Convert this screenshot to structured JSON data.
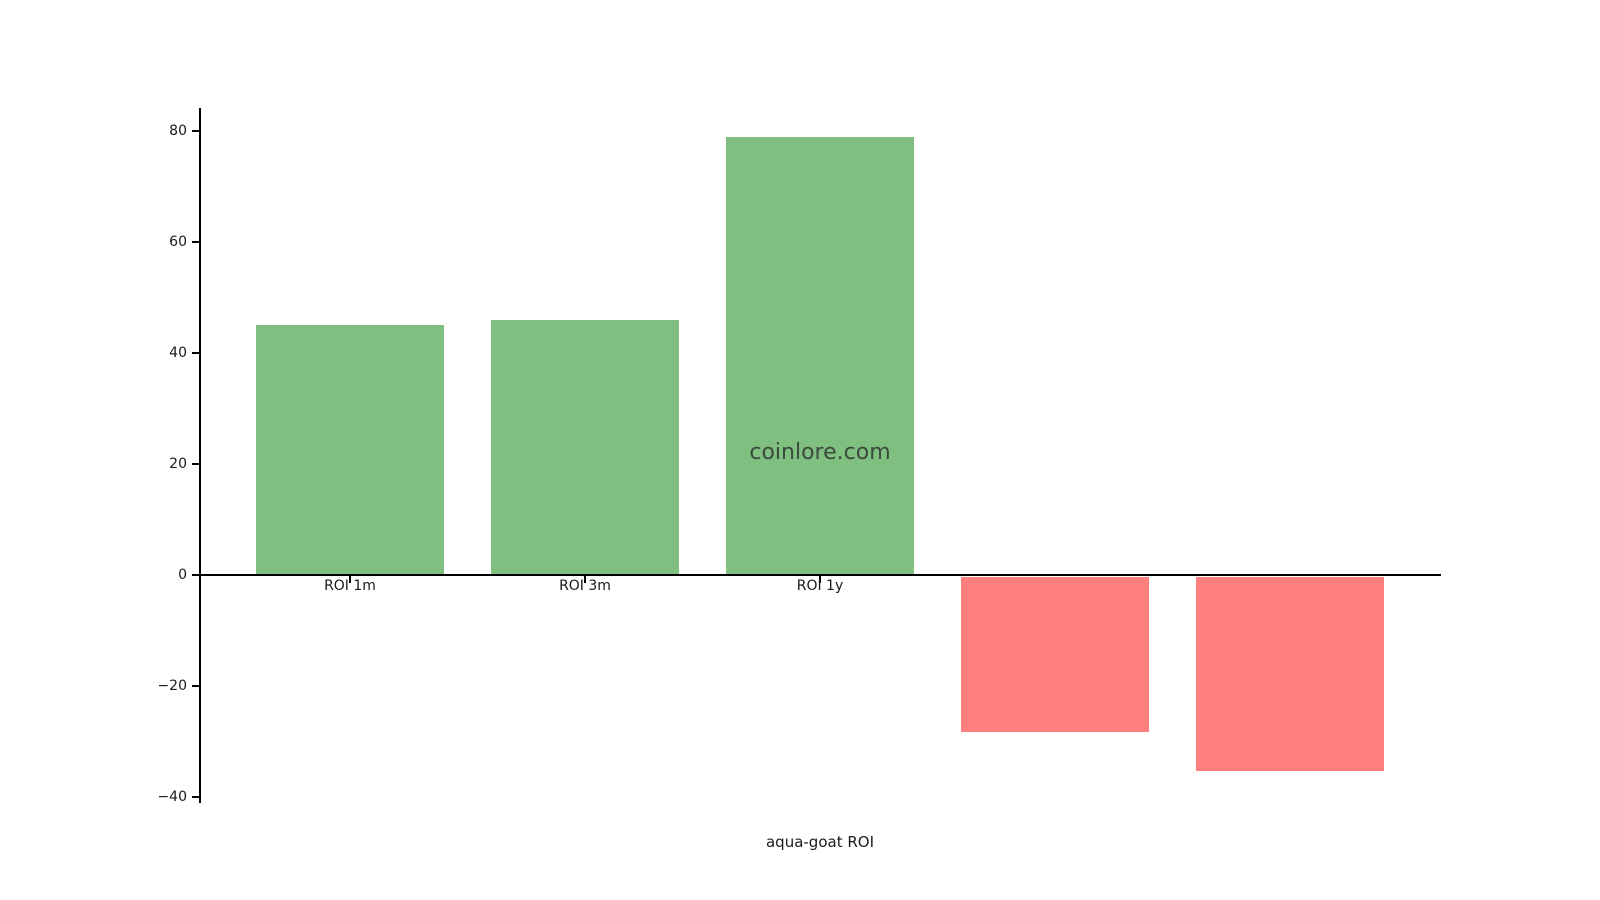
{
  "chart_data": {
    "type": "bar",
    "title": "",
    "categories": [
      "ROI 1m",
      "ROI 3m",
      "ROI 1y",
      "",
      ""
    ],
    "values": [
      45,
      46,
      79,
      -28,
      -35
    ],
    "series": [
      {
        "name": "aqua-goat ROI %",
        "values": [
          45,
          46,
          79,
          -28,
          -35
        ]
      }
    ],
    "xlabel": "aqua-goat ROI",
    "ylabel": "",
    "yticks": [
      80,
      60,
      40,
      20,
      0,
      -20,
      -40
    ],
    "ylim": [
      -41,
      84.5
    ],
    "grid": false,
    "legend_position": "none",
    "watermark": "coinlore.com",
    "colors": {
      "bar_positive": "#7fbf7f",
      "bar_negative": "#ff7f7f",
      "axis": "#000000",
      "tick_label": "#1a1a1a",
      "watermark": "#3c4a3e",
      "background": "#ffffff"
    }
  }
}
